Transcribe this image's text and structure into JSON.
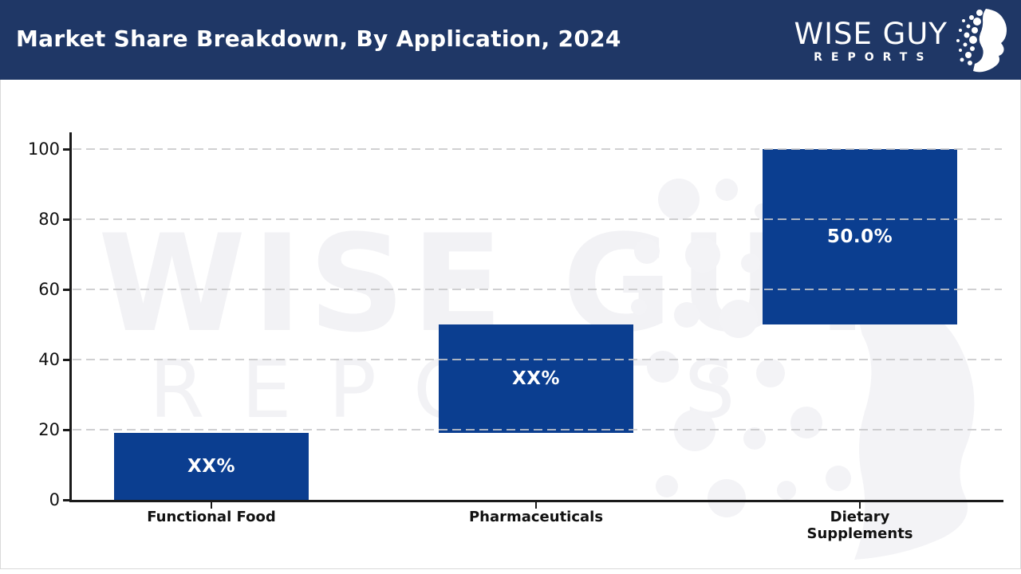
{
  "header": {
    "title": "Market Share Breakdown, By Application, 2024",
    "bg_color": "#1f3766",
    "logo_line1": "WISE GUY",
    "logo_line2": "REPORTS"
  },
  "watermark": {
    "line1": "WISE GUY",
    "line2": "REPORTS"
  },
  "chart_data": {
    "type": "bar",
    "subtype": "waterfall",
    "title": "Market Share Breakdown, By Application, 2024",
    "categories": [
      "Functional Food",
      "Pharmaceuticals",
      "Dietary Supplements"
    ],
    "series": [
      {
        "name": "Market Share (%)",
        "segments": [
          {
            "category": "Functional Food",
            "start": 0,
            "end": 19,
            "label": "XX%"
          },
          {
            "category": "Pharmaceuticals",
            "start": 19,
            "end": 50,
            "label": "XX%"
          },
          {
            "category": "Dietary Supplements",
            "start": 50,
            "end": 100,
            "label": "50.0%"
          }
        ]
      }
    ],
    "ylim": [
      0,
      100
    ],
    "yticks": [
      0,
      20,
      40,
      60,
      80,
      100
    ],
    "grid": {
      "horizontal": true,
      "style": "dashed",
      "color": "#dcdcdc",
      "above_bars": true
    },
    "bar_color": "#0b3e90",
    "bar_label_color": "#ffffff",
    "axis_color": "#1a1a1a",
    "legend": "none"
  }
}
